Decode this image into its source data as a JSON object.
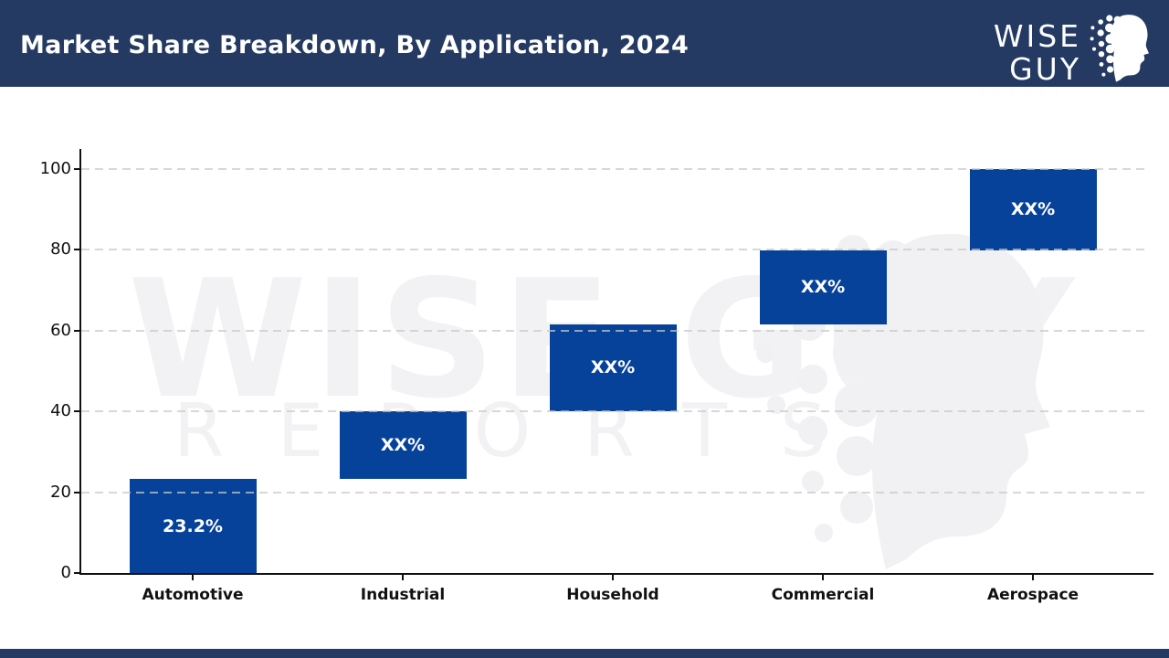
{
  "header": {
    "title": "Market Share Breakdown, By Application, 2024"
  },
  "logo": {
    "line1": "WISE GUY",
    "line2": "REPORTS",
    "icon": "dotted-head-profile"
  },
  "watermark": {
    "line1": "WISE GUY",
    "line2": "REPORTS"
  },
  "colors": {
    "header_bg": "#243a63",
    "footer_bg": "#243a63",
    "bar": "#06429a",
    "grid": "#dcdcdc",
    "title_text": "#ffffff",
    "axis_text": "#111111"
  },
  "chart_data": {
    "type": "bar",
    "subtype": "waterfall",
    "title": "Market Share Breakdown, By Application, 2024",
    "categories": [
      "Automotive",
      "Industrial",
      "Household",
      "Commercial",
      "Aerospace"
    ],
    "segments": [
      {
        "category": "Automotive",
        "start": 0,
        "end": 23.2,
        "label": "23.2%"
      },
      {
        "category": "Industrial",
        "start": 23.2,
        "end": 40.1,
        "label": "XX%"
      },
      {
        "category": "Household",
        "start": 40.1,
        "end": 61.5,
        "label": "XX%"
      },
      {
        "category": "Commercial",
        "start": 61.5,
        "end": 79.9,
        "label": "XX%"
      },
      {
        "category": "Aerospace",
        "start": 79.9,
        "end": 100,
        "label": "XX%"
      }
    ],
    "yticks": [
      0,
      20,
      40,
      60,
      80,
      100
    ],
    "ylim": [
      0,
      105
    ],
    "xlabel": "",
    "ylabel": "",
    "grid": "horizontal-dashed",
    "legend": "none",
    "bar_value_labels_inside": true
  }
}
